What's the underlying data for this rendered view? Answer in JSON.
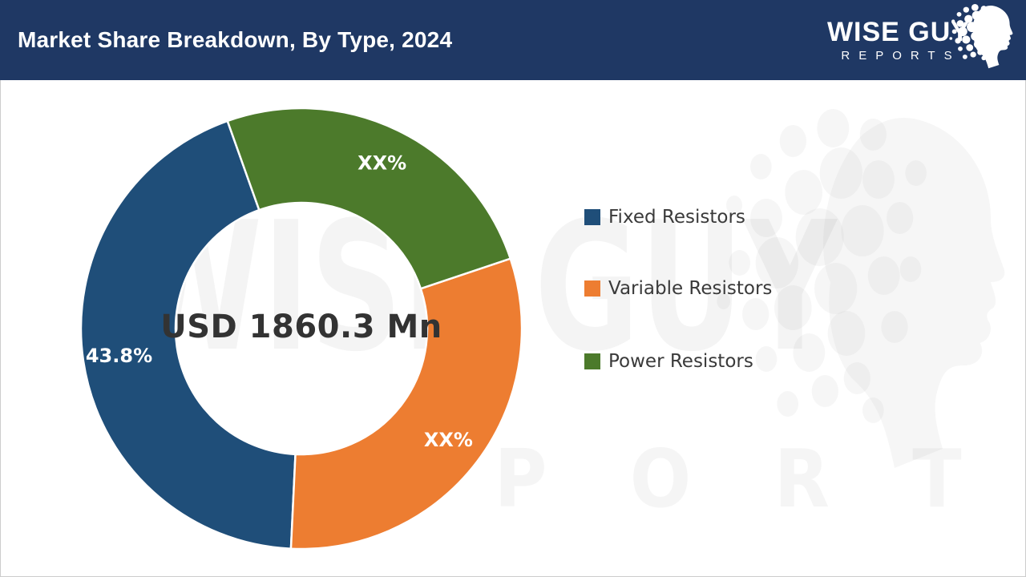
{
  "header": {
    "title": "Market Share Breakdown, By Type, 2024",
    "bg_color": "#1F3864",
    "logo": {
      "line1": "WISE GUY",
      "line2": "REPORTS"
    }
  },
  "chart_data": {
    "type": "pie",
    "subtype": "donut",
    "title": "Market Share Breakdown, By Type, 2024",
    "center_label": "USD 1860.3 Mn",
    "start_angle_deg": 109.6,
    "direction": "counterclockwise",
    "inner_radius_ratio": 0.57,
    "legend_position": "right",
    "separator_color": "#FFFFFF",
    "segments": [
      {
        "name": "Fixed Resistors",
        "display_label": "43.8%",
        "value_pct": 43.8,
        "color": "#1F4E79"
      },
      {
        "name": "Variable Resistors",
        "display_label": "XX%",
        "value_pct": 30.9,
        "color": "#ED7D31"
      },
      {
        "name": "Power Resistors",
        "display_label": "XX%",
        "value_pct": 25.3,
        "color": "#4C7A2B"
      }
    ]
  },
  "watermark": {
    "line1": "WISE GUY",
    "line2": "R E P O R T S"
  },
  "colors": {
    "header_bg": "#1F3864",
    "center_label_text": "#333333",
    "legend_text": "#3A3A3A",
    "border": "#CCCCCC"
  }
}
